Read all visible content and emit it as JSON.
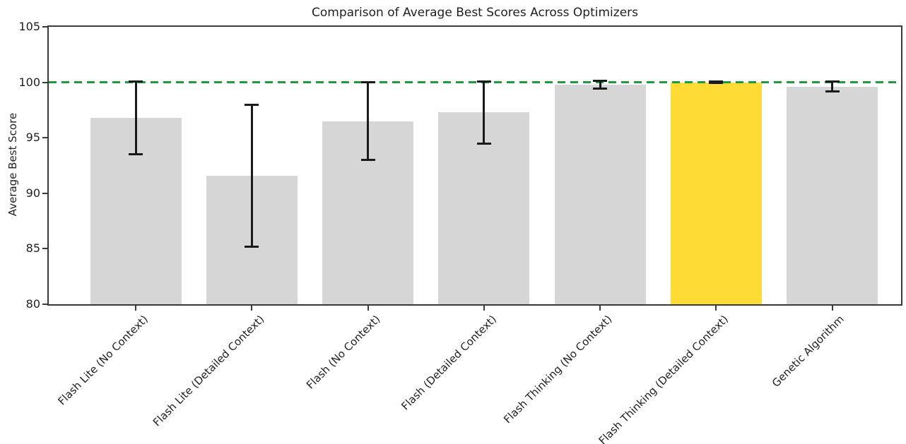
{
  "chart_data": {
    "type": "bar",
    "title": "Comparison of Average Best Scores Across Optimizers",
    "xlabel": "",
    "ylabel": "Average Best Score",
    "ylim": [
      80,
      105
    ],
    "yticks": [
      105,
      100,
      95,
      90,
      85,
      80
    ],
    "grid": false,
    "legend": null,
    "categories": [
      "Flash Lite (No Context)",
      "Flash Lite (Detailed Context)",
      "Flash (No Context)",
      "Flash (Detailed Context)",
      "Flash Thinking (No Context)",
      "Flash Thinking (Detailed Context)",
      "Genetic Algorithm"
    ],
    "series": [
      {
        "name": "Average Best Score",
        "values": [
          96.8,
          91.6,
          96.5,
          97.3,
          99.8,
          100.0,
          99.6
        ],
        "errors": [
          3.3,
          6.4,
          3.5,
          2.8,
          0.35,
          0.05,
          0.45
        ]
      }
    ],
    "reference_line": {
      "value": 100,
      "style": "dashed",
      "color": "#1e9b3c"
    },
    "highlight_index": 5,
    "highlight_category": "Flash Thinking (Detailed Context)",
    "colors": {
      "bar_default": "#d6d6d6",
      "bar_highlight": "#ffdc35",
      "errorbar": "#1a1a1a",
      "spine": "#3a3a3a",
      "text": "#1f1f1f"
    }
  }
}
